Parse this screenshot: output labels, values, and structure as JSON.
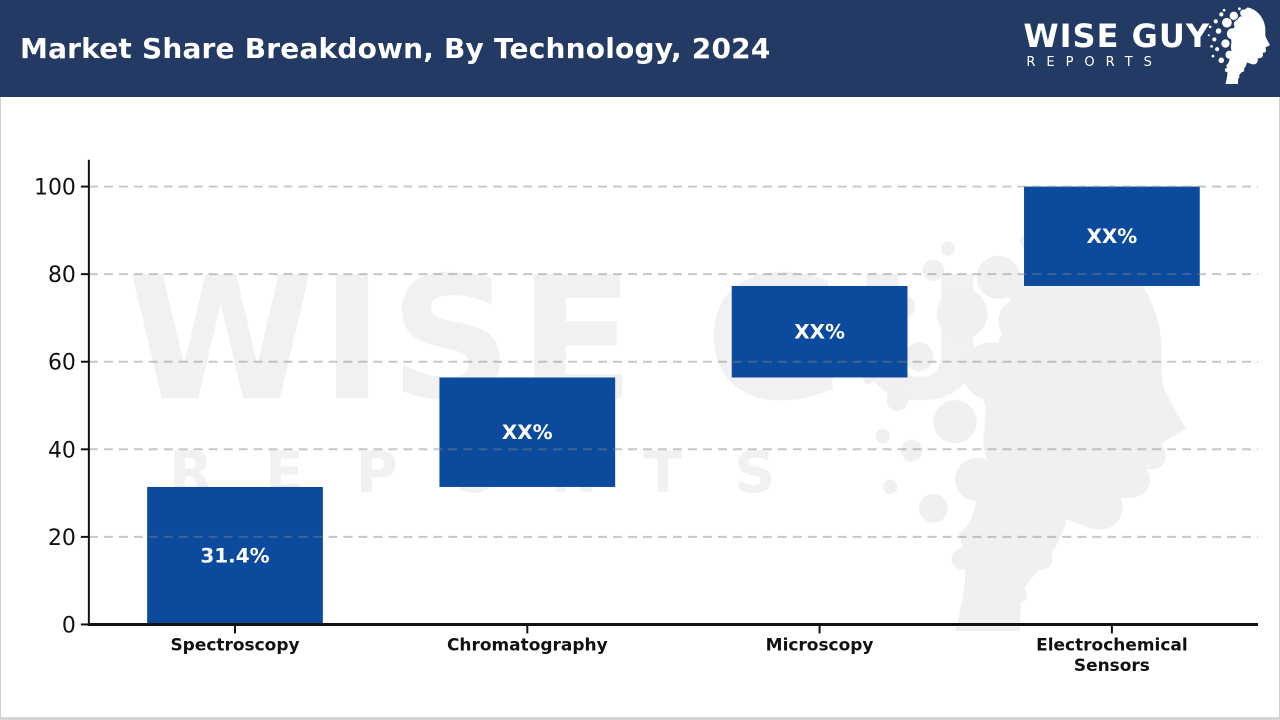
{
  "header": {
    "title": "Market Share Breakdown, By Technology, 2024",
    "logo": {
      "name": "WISE GUY",
      "reports": "REPORTS"
    }
  },
  "watermark": {
    "name": "WISE GUY",
    "reports": "REPORTS"
  },
  "chart_data": {
    "type": "bar",
    "variant": "waterfall",
    "title": "Market Share Breakdown, By Technology, 2024",
    "categories": [
      "Spectroscopy",
      "Chromatography",
      "Microscopy",
      "Electrochemical Sensors"
    ],
    "segments": [
      {
        "category": "Spectroscopy",
        "start": 0,
        "end": 31.4,
        "label": "31.4%"
      },
      {
        "category": "Chromatography",
        "start": 31.4,
        "end": 56.4,
        "label": "XX%"
      },
      {
        "category": "Microscopy",
        "start": 56.4,
        "end": 77.3,
        "label": "XX%"
      },
      {
        "category": "Electrochemical Sensors",
        "start": 77.3,
        "end": 100,
        "label": "XX%"
      }
    ],
    "yticks": [
      0,
      20,
      40,
      60,
      80,
      100
    ],
    "ylim": [
      0,
      100
    ],
    "xlabel": "",
    "ylabel": "",
    "grid": true,
    "gridline_style": "dashed",
    "legend": false,
    "bar_color": "#0c4a9e",
    "bar_label_color": "#ffffff"
  },
  "colors": {
    "header_bg": "#233a64",
    "bar": "#0c4a9e",
    "axis": "#111111",
    "grid": "#d2d2d2",
    "watermark": "#f1f1f4",
    "tick_label": "#111111"
  }
}
